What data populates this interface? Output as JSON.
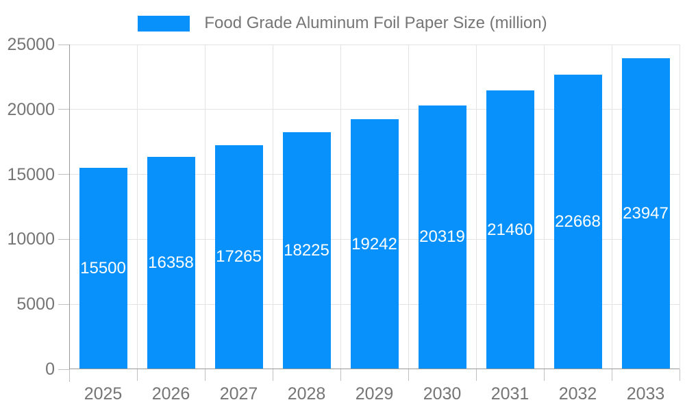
{
  "legend": {
    "label": "Food Grade Aluminum Foil Paper Size (million)"
  },
  "chart_data": {
    "type": "bar",
    "title": "Food Grade Aluminum Foil Paper Size (million)",
    "series_name": "Food Grade Aluminum Foil Paper Size (million)",
    "categories": [
      "2025",
      "2026",
      "2027",
      "2028",
      "2029",
      "2030",
      "2031",
      "2032",
      "2033"
    ],
    "values": [
      15500,
      16358,
      17265,
      18225,
      19242,
      20319,
      21460,
      22668,
      23947
    ],
    "xlabel": "",
    "ylabel": "",
    "ylim": [
      0,
      25000
    ],
    "yticks": [
      0,
      5000,
      10000,
      15000,
      20000,
      25000
    ],
    "grid": true,
    "legend_position": "top",
    "value_labels_inside_bars": true,
    "colors": {
      "bar": "#0891fa",
      "value_label": "#ffffff",
      "axis_text": "#757575",
      "legend_text": "#757575",
      "grid_line": "#e3e3e3",
      "axis_line": "#999999",
      "tick": "#c0c0c0",
      "background": "#ffffff"
    }
  }
}
